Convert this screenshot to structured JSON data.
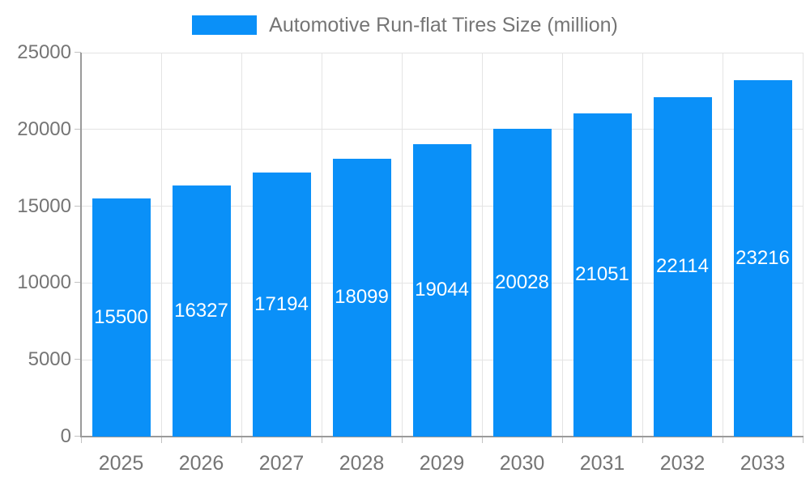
{
  "chart_data": {
    "type": "bar",
    "title": "Automotive Run-flat Tires Size (million)",
    "categories": [
      "2025",
      "2026",
      "2027",
      "2028",
      "2029",
      "2030",
      "2031",
      "2032",
      "2033"
    ],
    "values": [
      15500,
      16327,
      17194,
      18099,
      19044,
      20028,
      21051,
      22114,
      23216
    ],
    "xlabel": "",
    "ylabel": "",
    "ylim": [
      0,
      25000
    ],
    "yticks": [
      0,
      5000,
      10000,
      15000,
      20000,
      25000
    ],
    "grid": true,
    "legend_position": "top-center",
    "bar_labels_inside": true,
    "colors": {
      "bar": "#0A90F8",
      "bar_label": "#FFFFFF",
      "grid": "#E4E4E4",
      "axis": "#9A9A9A",
      "tick_mark": "#C2C2C2",
      "tick_label": "#757575",
      "legend_label": "#757575",
      "background": "#FFFFFF"
    }
  }
}
